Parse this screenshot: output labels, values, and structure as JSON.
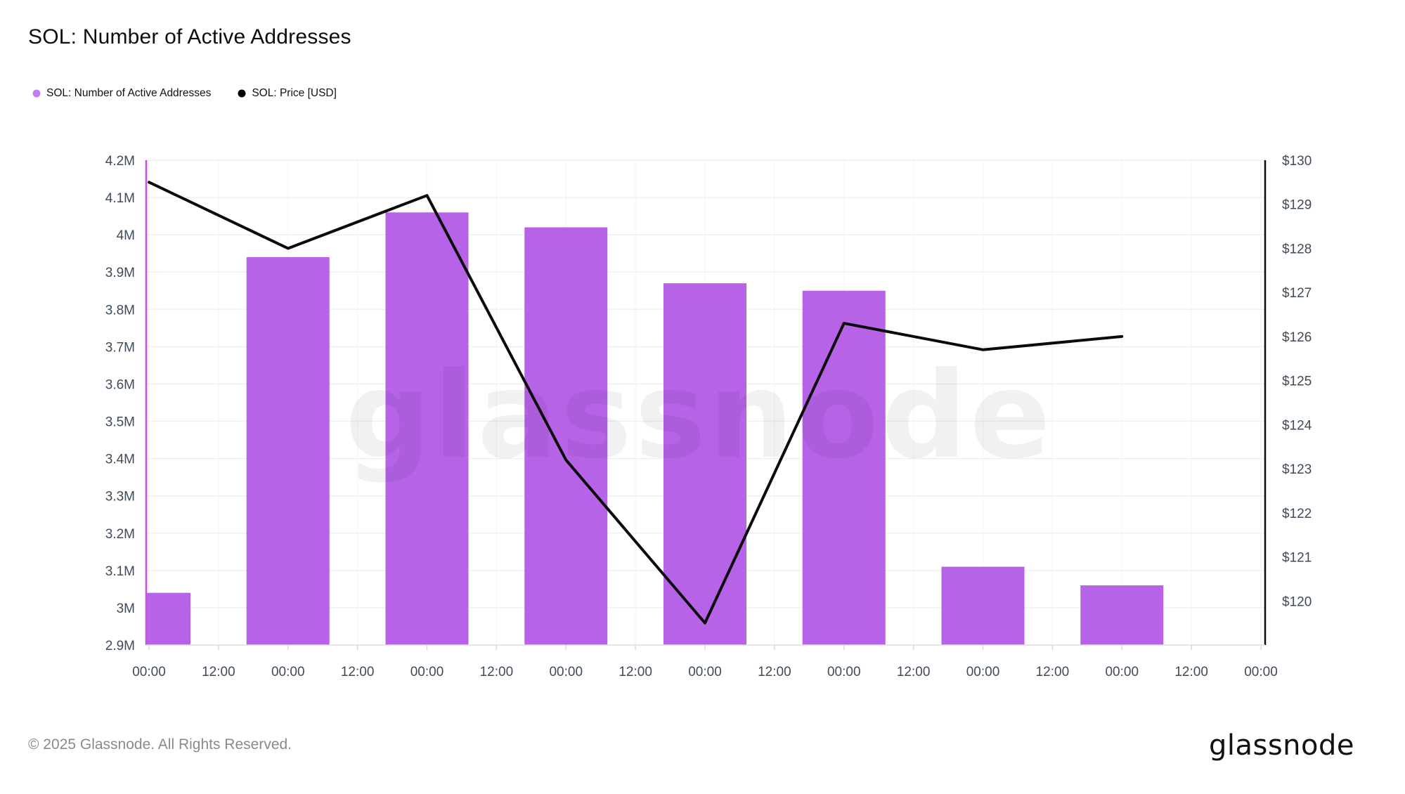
{
  "header": {
    "title": "SOL: Number of Active Addresses"
  },
  "legend": {
    "items": [
      {
        "label": "SOL: Number of Active Addresses",
        "marker_color": "#c77bee"
      },
      {
        "label": "SOL: Price [USD]",
        "marker_color": "#000000"
      }
    ]
  },
  "watermark_text": "glassnode",
  "footer": {
    "copyright": "© 2025 Glassnode. All Rights Reserved.",
    "brand_wordmark": "glassnode"
  },
  "chart_data": {
    "type": "bar",
    "subtype": "bar+line combo with dual y-axes",
    "title": "SOL: Number of Active Addresses",
    "x_axis": {
      "tick_labels": [
        "00:00",
        "12:00",
        "00:00",
        "12:00",
        "00:00",
        "12:00",
        "00:00",
        "12:00",
        "00:00",
        "12:00",
        "00:00",
        "12:00",
        "00:00",
        "12:00",
        "00:00",
        "12:00",
        "00:00"
      ],
      "note": "12-hour ticks; bar and line data points fall on each 00:00 tick"
    },
    "left_axis": {
      "series": "SOL: Number of Active Addresses",
      "unit": "addresses (millions)",
      "min": 2.9,
      "max": 4.2,
      "tick_labels_top_to_bottom": [
        "4.2M",
        "4.1M",
        "4M",
        "3.9M",
        "3.8M",
        "3.7M",
        "3.6M",
        "3.5M",
        "3.4M",
        "3.3M",
        "3.2M",
        "3.1M",
        "3M",
        "2.9M"
      ]
    },
    "right_axis": {
      "series": "SOL: Price [USD]",
      "unit": "USD",
      "min": 119,
      "max": 130,
      "tick_labels_top_to_bottom": [
        "$130",
        "$129",
        "$128",
        "$127",
        "$126",
        "$125",
        "$124",
        "$123",
        "$122",
        "$121",
        "$120"
      ]
    },
    "series": [
      {
        "name": "SOL: Number of Active Addresses",
        "type": "bar",
        "axis": "left",
        "color": "#b763e8",
        "x_tick_indexes": [
          0,
          2,
          4,
          6,
          8,
          10,
          12,
          14
        ],
        "values_millions": [
          3.04,
          3.94,
          4.06,
          4.02,
          3.87,
          3.85,
          3.11,
          3.06
        ]
      },
      {
        "name": "SOL: Price [USD]",
        "type": "line",
        "axis": "right",
        "color": "#0b0b0b",
        "x_tick_indexes": [
          0,
          2,
          4,
          6,
          8,
          10,
          12,
          14
        ],
        "values_usd": [
          129.5,
          128.0,
          129.2,
          123.2,
          119.5,
          126.3,
          125.7,
          126.0
        ]
      }
    ],
    "legend_position": "top-left",
    "grid": "horizontal gridlines at every 0.1M, faint vertical gridlines at every 12h tick",
    "accents": {
      "left_axis_line_color": "#c94fe6",
      "right_axis_line_color": "#0b0b0b",
      "gridline_color": "#f0f0f0",
      "faint_vertical_gridline_color": "#f7f7f7",
      "axis_label_color": "#3f4b59",
      "watermark_opacity": 0.055
    }
  }
}
